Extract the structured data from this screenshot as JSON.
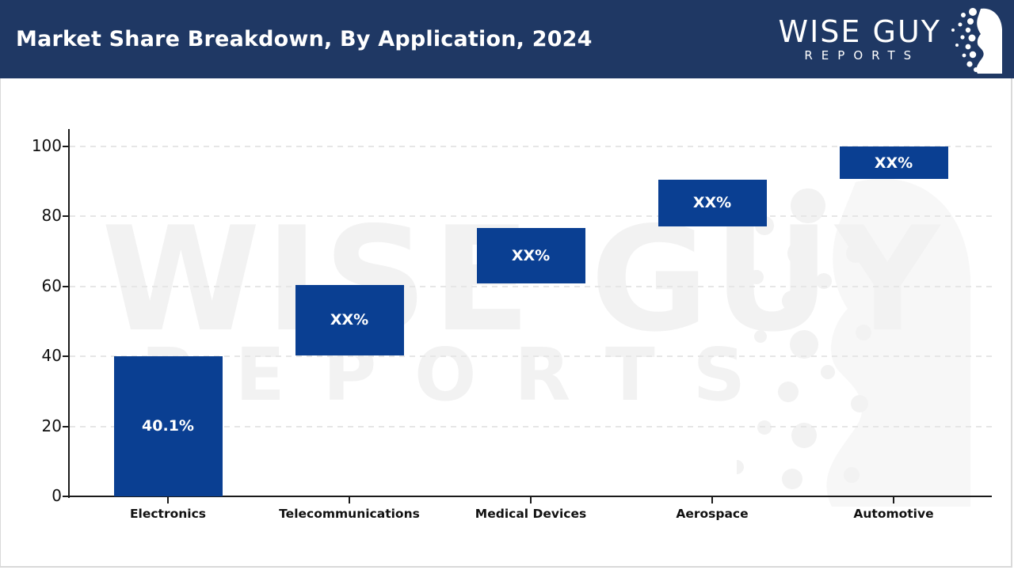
{
  "header": {
    "title": "Market Share Breakdown, By Application, 2024",
    "logo": {
      "line1": "WISE GUY",
      "line2": "REPORTS"
    }
  },
  "watermark": {
    "line1": "WISE GUY",
    "line2": "REPORTS"
  },
  "colors": {
    "header_bg": "#1f3864",
    "bar_blue": "#0a3f92",
    "grid_gray": "#e6e6e6",
    "watermark_gray": "#f2f2f2",
    "axis_black": "#1a1a1a"
  },
  "chart_data": {
    "type": "bar",
    "variant": "floating-stacked-percentage",
    "title": "Market Share Breakdown, By Application, 2024",
    "categories": [
      "Electronics",
      "Telecommunications",
      "Medical Devices",
      "Aerospace",
      "Automotive"
    ],
    "segments": [
      {
        "category": "Electronics",
        "from": 0,
        "to": 40.1,
        "label": "40.1%"
      },
      {
        "category": "Telecommunications",
        "from": 40.2,
        "to": 60.5,
        "label": "XX%"
      },
      {
        "category": "Medical Devices",
        "from": 60.8,
        "to": 76.7,
        "label": "XX%"
      },
      {
        "category": "Aerospace",
        "from": 77.1,
        "to": 90.6,
        "label": "XX%"
      },
      {
        "category": "Automotive",
        "from": 90.7,
        "to": 99.9,
        "label": "XX%"
      }
    ],
    "yticks": [
      0,
      20,
      40,
      60,
      80,
      100
    ],
    "ylim": [
      0,
      105
    ],
    "xlabel": "",
    "ylabel": "",
    "legend": "none",
    "grid": {
      "horizontal": true,
      "style": "dashed"
    },
    "bar_color": "#0a3f92"
  }
}
